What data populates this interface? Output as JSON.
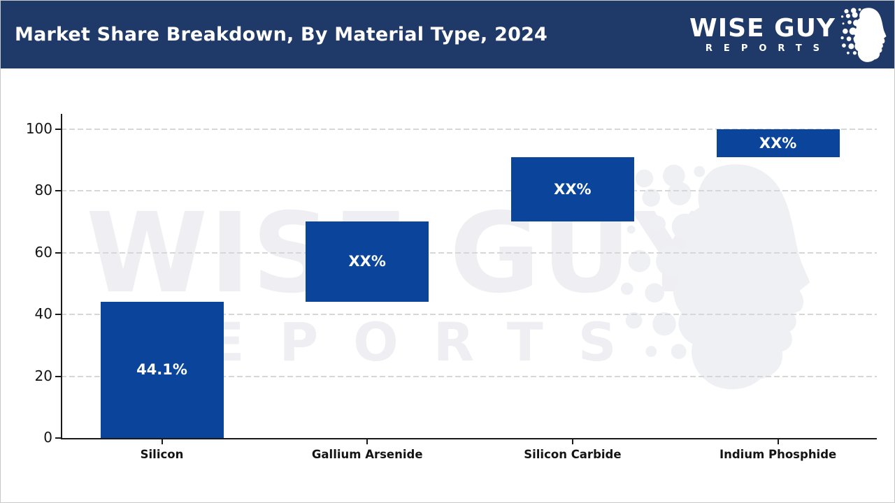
{
  "page": {
    "background": "#ffffff",
    "border_color": "#c9c9c9"
  },
  "header": {
    "background": "#1f3a68",
    "title": "Market Share Breakdown, By Material Type, 2024",
    "title_color": "#ffffff",
    "logo": {
      "wordmark": "WISE GUY",
      "subtext": "REPORTS",
      "icon": "dotted-face-profile-icon",
      "color": "#ffffff"
    }
  },
  "watermark": {
    "line1": "WISE GUY",
    "line2": "REPORTS",
    "icon": "dotted-face-profile-icon",
    "color": "#eeeef3"
  },
  "chart_data": {
    "type": "bar",
    "subtype": "floating-waterfall",
    "title": "Market Share Breakdown, By Material Type, 2024",
    "categories": [
      "Silicon",
      "Gallium Arsenide",
      "Silicon Carbide",
      "Indium Phosphide"
    ],
    "segments": [
      {
        "category": "Silicon",
        "start": 0,
        "end": 44.1,
        "label": "44.1%"
      },
      {
        "category": "Gallium Arsenide",
        "start": 44.1,
        "end": 70.2,
        "label": "XX%"
      },
      {
        "category": "Silicon Carbide",
        "start": 70.2,
        "end": 90.8,
        "label": "XX%"
      },
      {
        "category": "Indium Phosphide",
        "start": 90.8,
        "end": 100.0,
        "label": "XX%"
      }
    ],
    "xlabel": "",
    "ylabel": "",
    "ylim": [
      0,
      100
    ],
    "yticks": [
      0,
      20,
      40,
      60,
      80,
      100
    ],
    "grid": "horizontal-dashed",
    "gridline_color": "#d7d7d7",
    "bar_color": "#0a449b",
    "bar_label_color": "#ffffff",
    "axis_color": "#1a1a1a",
    "tick_label_color": "#141414",
    "legend": "none"
  }
}
